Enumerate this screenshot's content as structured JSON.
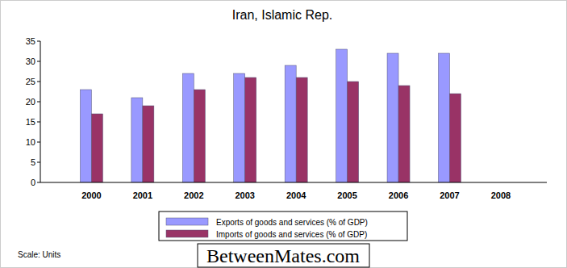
{
  "chart_data": {
    "type": "bar",
    "title": "Iran, Islamic Rep.",
    "categories": [
      "2000",
      "2001",
      "2002",
      "2003",
      "2004",
      "2005",
      "2006",
      "2007",
      "2008"
    ],
    "series": [
      {
        "name": "Exports of goods and services (% of GDP)",
        "color": "#9999ff",
        "values": [
          23,
          21,
          27,
          27,
          29,
          33,
          32,
          32,
          null
        ]
      },
      {
        "name": "Imports of goods and services (% of GDP)",
        "color": "#993366",
        "values": [
          17,
          19,
          23,
          26,
          26,
          25,
          24,
          22,
          null
        ]
      }
    ],
    "ylim": [
      0,
      35
    ],
    "yticks": [
      0,
      5,
      10,
      15,
      20,
      25,
      30,
      35
    ],
    "grid": false,
    "legend": "bottom",
    "annotations": [
      "Scale: Units",
      "BetweenMates.com"
    ]
  }
}
